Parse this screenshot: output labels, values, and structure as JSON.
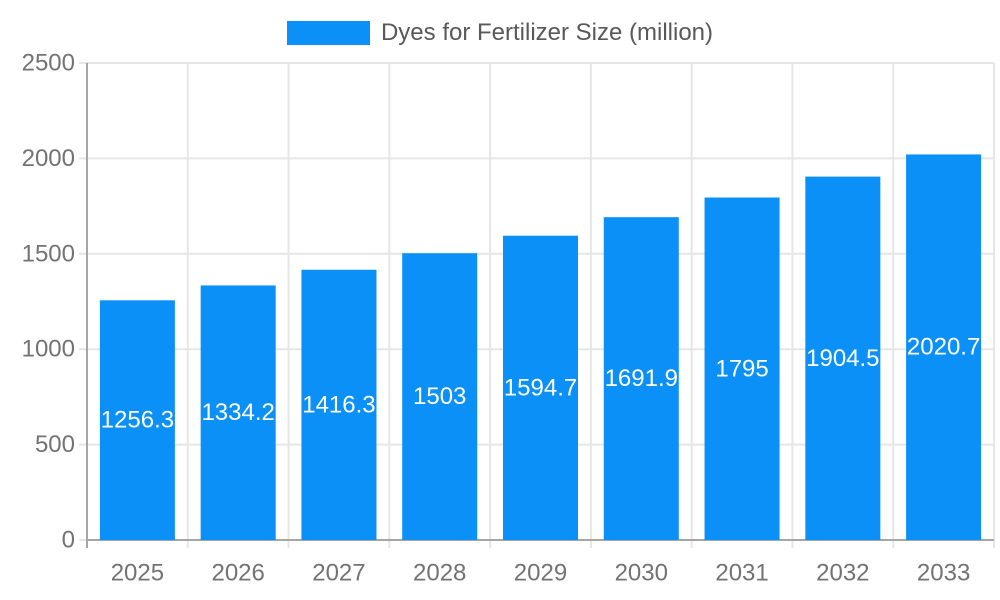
{
  "legend": {
    "label": "Dyes for Fertilizer Size (million)"
  },
  "chart_data": {
    "type": "bar",
    "title": "",
    "series_name": "Dyes for Fertilizer Size (million)",
    "categories": [
      "2025",
      "2026",
      "2027",
      "2028",
      "2029",
      "2030",
      "2031",
      "2032",
      "2033"
    ],
    "values": [
      1256.3,
      1334.2,
      1416.3,
      1503,
      1594.7,
      1691.9,
      1795,
      1904.5,
      2020.7
    ],
    "bar_labels": [
      "1256.3",
      "1334.2",
      "1416.3",
      "1503",
      "1594.7",
      "1691.9",
      "1795",
      "1904.5",
      "2020.7"
    ],
    "xlabel": "",
    "ylabel": "",
    "ylim": [
      0,
      2500
    ],
    "yticks": [
      0,
      500,
      1000,
      1500,
      2000,
      2500
    ],
    "grid": true,
    "legend_position": "top-center",
    "colors": {
      "bar": "#0a90f6",
      "bar_label": "#ffffff",
      "grid": "#e6e6e6",
      "axis_line": "#a6a6a6",
      "tick_text": "#737373",
      "legend_text": "#595959"
    }
  }
}
